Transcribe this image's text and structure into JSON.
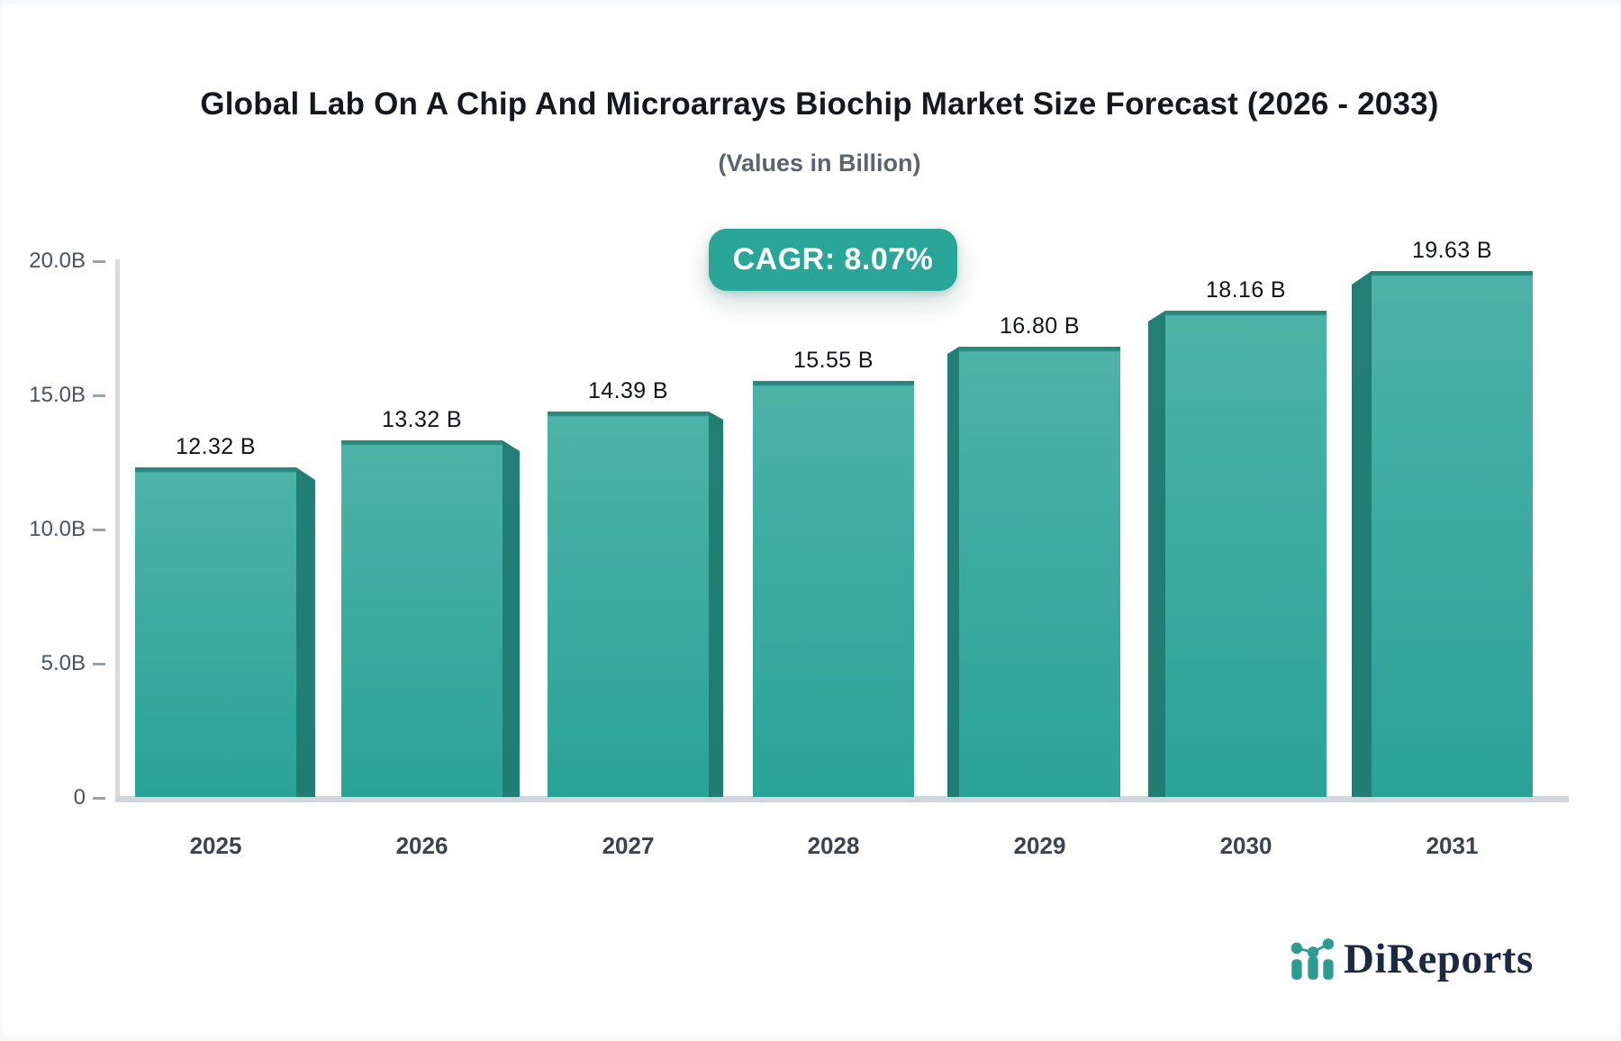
{
  "title": "Global Lab On A Chip And Microarrays Biochip Market Size Forecast (2026 - 2033)",
  "subtitle": "(Values in Billion)",
  "badge": {
    "label": "CAGR: 8.07%"
  },
  "chart_data": {
    "type": "bar",
    "categories": [
      "2025",
      "2026",
      "2027",
      "2028",
      "2029",
      "2030",
      "2031"
    ],
    "values": [
      12.32,
      13.32,
      14.39,
      15.55,
      16.8,
      18.16,
      19.63
    ],
    "value_labels": [
      "12.32 B",
      "13.32 B",
      "14.39 B",
      "15.55 B",
      "16.80 B",
      "18.16 B",
      "19.63 B"
    ],
    "unit": "Billion USD",
    "ylim": [
      0,
      20
    ],
    "yticks": {
      "values": [
        20,
        15,
        10,
        5,
        0
      ],
      "labels": [
        "20.0B",
        "15.0B",
        "10.0B",
        "5.0B",
        "0"
      ]
    },
    "grid": "off",
    "legend": "none",
    "style": "pseudo-3d bars, perspective side panels toward center"
  },
  "colors": {
    "bar_face_top": "#4db2a7",
    "bar_face_bottom": "#2ba397",
    "bar_top_edge": "#278880",
    "bar_side_panel": "#1f7d73",
    "badge_teal": "#2aa698",
    "axis_gray": "#d9dbe0",
    "tick_gray": "#9ba1ac",
    "title_color": "#15181e",
    "subtitle_color": "#5a6372",
    "logo_navy": "#1b2942",
    "logo_teal": "#2d9b91"
  },
  "logo": {
    "text": "DiReports",
    "icon": "mini-bar-line-chart-icon"
  }
}
